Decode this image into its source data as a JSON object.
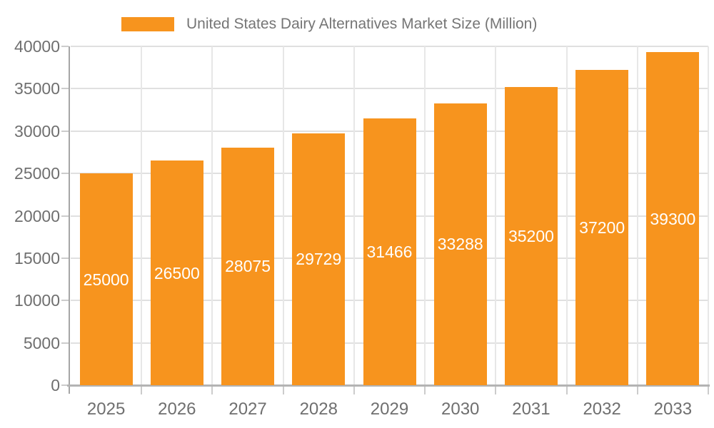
{
  "legend": {
    "label": "United States Dairy Alternatives Market Size (Million)"
  },
  "chart_data": {
    "type": "bar",
    "title": "United States Dairy Alternatives Market Size (Million)",
    "categories": [
      "2025",
      "2026",
      "2027",
      "2028",
      "2029",
      "2030",
      "2031",
      "2032",
      "2033"
    ],
    "series": [
      {
        "name": "United States Dairy Alternatives Market Size (Million)",
        "values": [
          25000,
          26500,
          28075,
          29729,
          31466,
          33288,
          35200,
          37200,
          39300
        ]
      }
    ],
    "value_labels": [
      "25000",
      "26500",
      "28075",
      "29729",
      "31466",
      "33288",
      "35200",
      "37200",
      "39300"
    ],
    "xlabel": "",
    "ylabel": "",
    "ylim": [
      0,
      40000
    ],
    "ytick_interval": 5000,
    "yticks": [
      0,
      5000,
      10000,
      15000,
      20000,
      25000,
      30000,
      35000,
      40000
    ],
    "ytick_labels": [
      "0",
      "5000",
      "10000",
      "15000",
      "20000",
      "25000",
      "30000",
      "35000",
      "40000"
    ],
    "grid": true,
    "legend_position": "top"
  },
  "colors": {
    "bar": "#F7941E",
    "value_text": "#FFFFFF",
    "axis_text": "#6F6F6F",
    "legend_text": "#757575",
    "grid_h": "#E0E0E0",
    "grid_v": "#E7E7E7",
    "tick": "#CCCCCC",
    "y_axis_line": "#A6A6A6",
    "x_axis_line": "#B3B3B3",
    "background": "#FFFFFF"
  }
}
